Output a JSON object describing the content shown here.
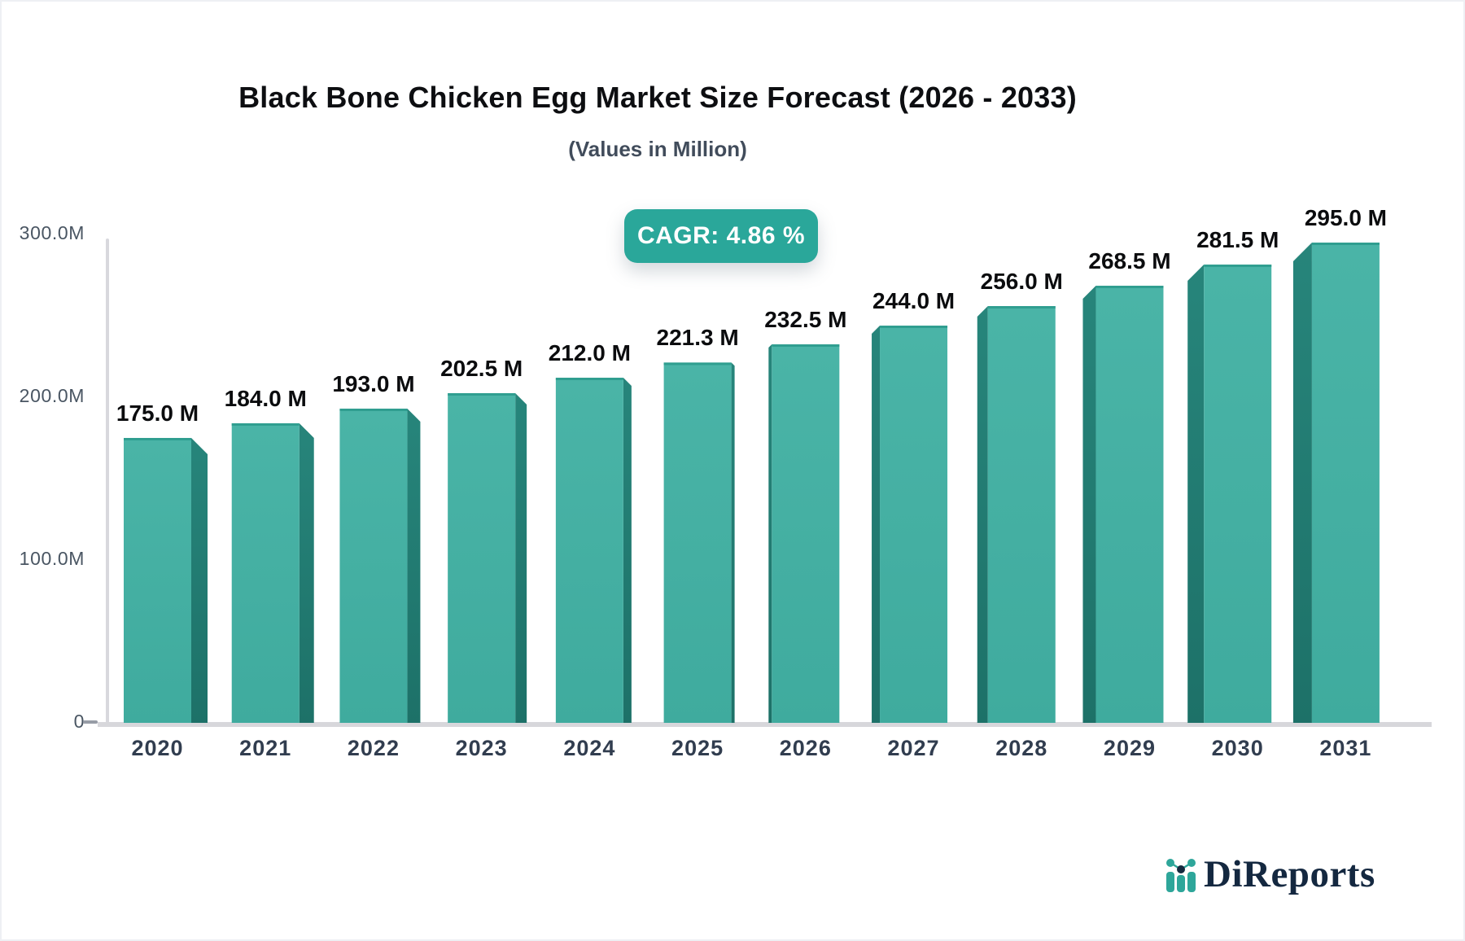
{
  "header": {
    "title": "Black Bone Chicken Egg Market Size Forecast (2026 - 2033)",
    "subtitle": "(Values in Million)"
  },
  "badge": {
    "label": "CAGR: 4.86 %"
  },
  "chart_data": {
    "type": "bar",
    "title": "Black Bone Chicken Egg Market Size Forecast (2026 - 2033)",
    "subtitle": "(Values in Million)",
    "unit": "Million",
    "cagr_percent": 4.86,
    "categories": [
      "2020",
      "2021",
      "2022",
      "2023",
      "2024",
      "2025",
      "2026",
      "2027",
      "2028",
      "2029",
      "2030",
      "2031"
    ],
    "values": [
      175.0,
      184.0,
      193.0,
      202.5,
      212.0,
      221.3,
      232.5,
      244.0,
      256.0,
      268.5,
      281.5,
      295.0
    ],
    "value_labels": [
      "175.0 M",
      "184.0 M",
      "193.0 M",
      "202.5 M",
      "212.0 M",
      "221.3 M",
      "232.5 M",
      "244.0 M",
      "256.0 M",
      "268.5 M",
      "281.5 M",
      "295.0 M"
    ],
    "xlabel": "",
    "ylabel": "",
    "ylim": [
      0,
      300
    ],
    "grid": false,
    "legend": "none",
    "y_ticks": [
      {
        "value": 300,
        "label": "300.0M"
      },
      {
        "value": 200,
        "label": "200.0M"
      },
      {
        "value": 100,
        "label": "100.0M"
      },
      {
        "value": 0,
        "label": "0"
      }
    ],
    "colors": {
      "bar_front": "#3fab9e",
      "bar_front_light": "#4ab4a7",
      "bar_side": "#27857b",
      "bar_side_dark": "#1d7168",
      "bar_top_edge": "#2d9b8e",
      "badge_bg": "#2aa79a",
      "badge_text": "#ffffff",
      "axis_line": "#d7d7dc",
      "tick_label": "#4a5663",
      "year_label": "#313d4f",
      "value_label": "#0b0c0e"
    }
  },
  "logo": {
    "text": "DiReports",
    "icon": "mini-bar-chart-icon",
    "text_color": "#142840",
    "accent_color": "#2ea69a"
  }
}
